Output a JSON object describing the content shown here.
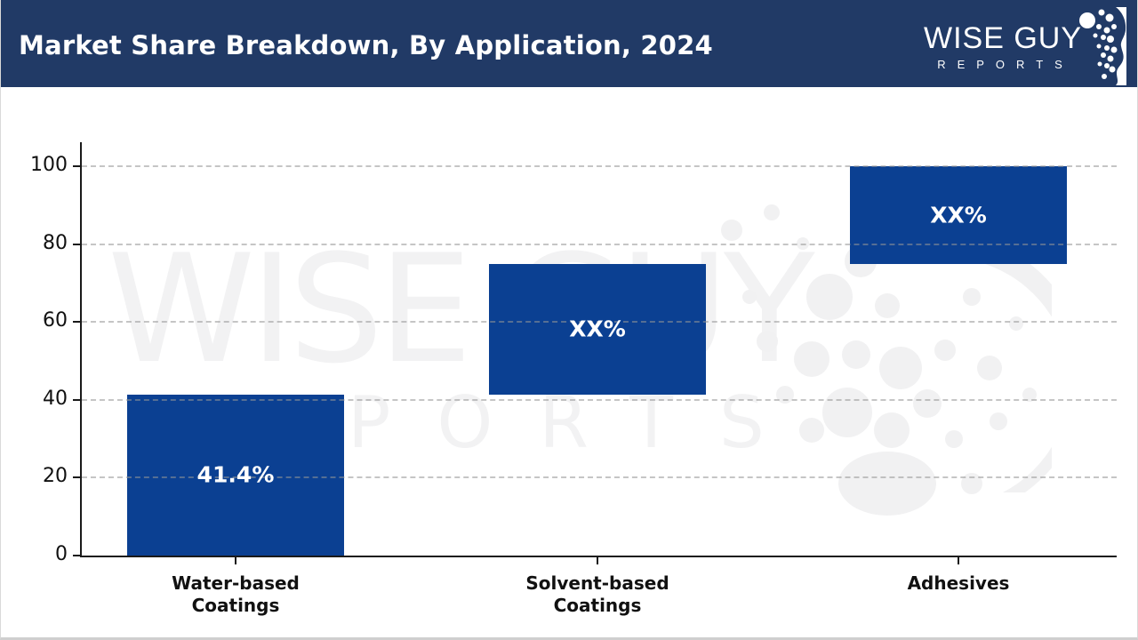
{
  "header": {
    "title": "Market Share Breakdown, By Application, 2024",
    "logo": {
      "line1": "WISE GUY",
      "line2": "REPORTS"
    }
  },
  "watermark": {
    "line1": "WISE GUY",
    "line2": "REPORTS"
  },
  "chart_data": {
    "type": "bar",
    "subtype": "floating-segment-bars",
    "title": "Market Share Breakdown, By Application, 2024",
    "categories": [
      [
        "Water-based",
        "Coatings"
      ],
      [
        "Solvent-based",
        "Coatings"
      ],
      [
        "Adhesives"
      ]
    ],
    "segments": [
      {
        "category": "Water-based Coatings",
        "start": 0,
        "end": 41.4,
        "label": "41.4%"
      },
      {
        "category": "Solvent-based Coatings",
        "start": 41.4,
        "end": 75,
        "label": "XX%"
      },
      {
        "category": "Adhesives",
        "start": 75,
        "end": 100,
        "label": "XX%"
      }
    ],
    "yticks": [
      0,
      20,
      40,
      60,
      80,
      100
    ],
    "ylim": [
      0,
      106.2
    ],
    "xlabel": "",
    "ylabel": "",
    "grid": "horizontal-dashed",
    "legend": "none"
  },
  "colors": {
    "header_bg": "#213A66",
    "bar": "#0B4092",
    "grid": "#D6D6D6",
    "axis": "#1A1A1A",
    "watermark": "#F2F2F3",
    "label_text": "#111111",
    "bar_label_text": "#FFFFFF"
  }
}
